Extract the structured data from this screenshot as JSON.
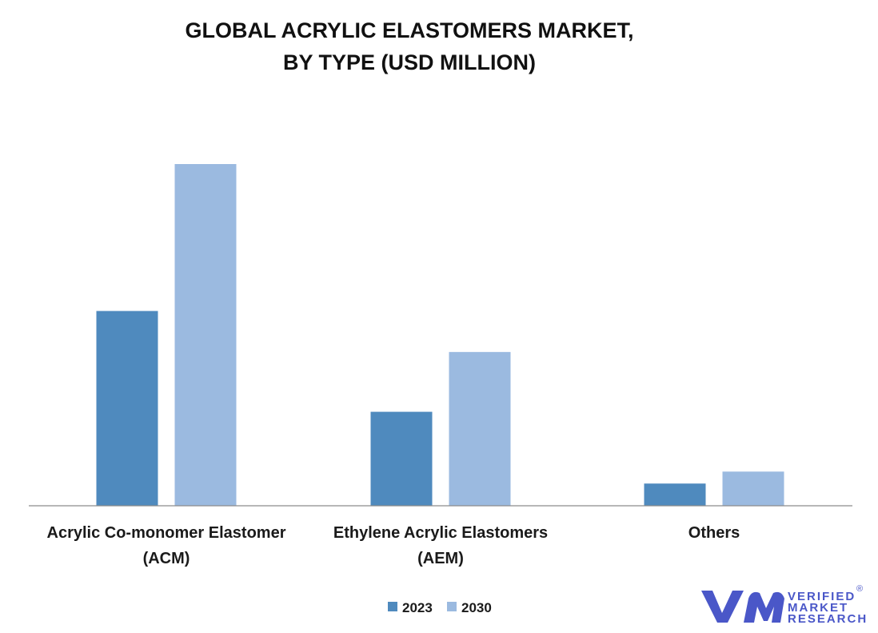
{
  "chart_data": {
    "type": "bar",
    "title": [
      "GLOBAL ACRYLIC ELASTOMERS MARKET,",
      "BY TYPE (USD MILLION)"
    ],
    "categories": [
      [
        "Acrylic Co-monomer Elastomer",
        "(ACM)"
      ],
      [
        "Ethylene Acrylic Elastomers",
        "(AEM)"
      ],
      [
        "Others"
      ]
    ],
    "series": [
      {
        "name": "2023",
        "color": "#4f8abe",
        "values": [
          57,
          27.5,
          6.5
        ]
      },
      {
        "name": "2030",
        "color": "#9bbae0",
        "values": [
          100,
          45,
          10
        ]
      }
    ],
    "ylim": [
      0,
      110
    ],
    "grid": false,
    "legend": "bottom-center"
  },
  "logo": {
    "lines": [
      "VERIFIED",
      "MARKET",
      "RESEARCH"
    ],
    "registered": "®",
    "color": "#4a57c8"
  }
}
